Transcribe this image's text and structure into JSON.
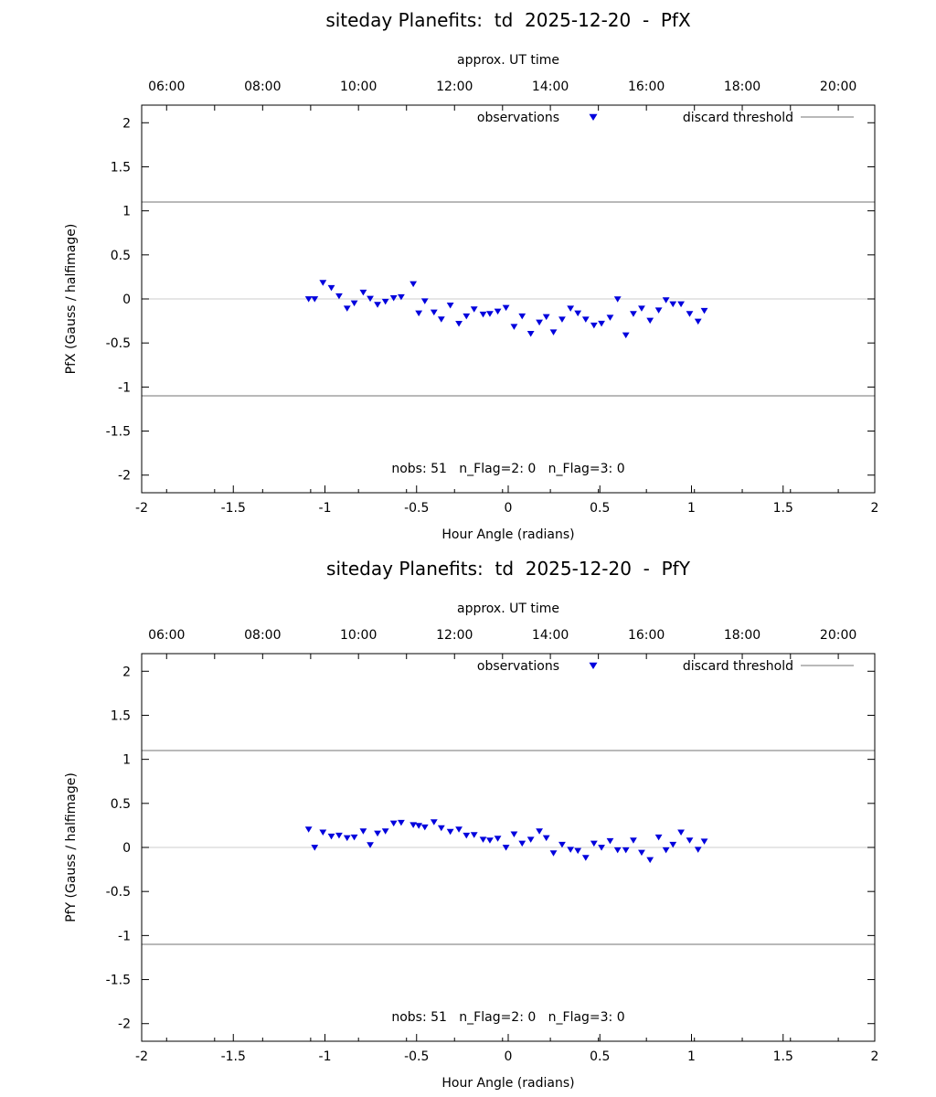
{
  "chart_data": [
    {
      "type": "scatter",
      "title": "siteday Planefits:  td  2025-12-20  -  PfX",
      "x2label": "approx. UT time",
      "xlabel": "Hour Angle (radians)",
      "ylabel": "PfX (Gauss / halfimage)",
      "xlim": [
        -2,
        2
      ],
      "ylim": [
        -2.2,
        2.2
      ],
      "x_ticks": [
        -2,
        -1.5,
        -1,
        -0.5,
        0,
        0.5,
        1,
        1.5,
        2
      ],
      "y_ticks": [
        2,
        1.5,
        1,
        0.5,
        0,
        -0.5,
        -1,
        -1.5,
        -2
      ],
      "x2_ticks": {
        "labels": [
          "06:00",
          "08:00",
          "10:00",
          "12:00",
          "14:00",
          "16:00",
          "18:00",
          "20:00"
        ],
        "positions_rad": [
          -1.864,
          -1.34,
          -0.817,
          -0.293,
          0.23,
          0.754,
          1.277,
          1.801
        ],
        "minor_positions_rad": [
          -1.602,
          -1.078,
          -0.555,
          -0.031,
          0.492,
          1.016,
          1.54
        ]
      },
      "zero_line": {
        "value": 0,
        "color": "#cdcdcd"
      },
      "thresholds": {
        "label": "discard threshold",
        "values": [
          1.1,
          -1.1
        ],
        "color": "#b9b9b9"
      },
      "grid": false,
      "legend_position": "top-inside",
      "footnote": "nobs: 51   n_Flag=2: 0   n_Flag=3: 0",
      "stats": {
        "nobs": 51,
        "n_flag_2": 0,
        "n_flag_3": 0
      },
      "series": [
        {
          "name": "observations",
          "marker": "triangle-down",
          "color": "#0000dd",
          "points": [
            [
              -1.089,
              0.0
            ],
            [
              -1.056,
              0.0
            ],
            [
              -1.011,
              0.185
            ],
            [
              -0.965,
              0.127
            ],
            [
              -0.923,
              0.033
            ],
            [
              -0.879,
              -0.106
            ],
            [
              -0.84,
              -0.047
            ],
            [
              -0.791,
              0.075
            ],
            [
              -0.753,
              0.005
            ],
            [
              -0.713,
              -0.064
            ],
            [
              -0.67,
              -0.029
            ],
            [
              -0.625,
              0.012
            ],
            [
              -0.584,
              0.023
            ],
            [
              -0.518,
              0.171
            ],
            [
              -0.488,
              -0.161
            ],
            [
              -0.455,
              -0.023
            ],
            [
              -0.405,
              -0.151
            ],
            [
              -0.365,
              -0.23
            ],
            [
              -0.316,
              -0.071
            ],
            [
              -0.269,
              -0.279
            ],
            [
              -0.228,
              -0.195
            ],
            [
              -0.186,
              -0.116
            ],
            [
              -0.137,
              -0.174
            ],
            [
              -0.1,
              -0.168
            ],
            [
              -0.057,
              -0.14
            ],
            [
              -0.012,
              -0.099
            ],
            [
              0.032,
              -0.314
            ],
            [
              0.076,
              -0.195
            ],
            [
              0.123,
              -0.393
            ],
            [
              0.17,
              -0.265
            ],
            [
              0.208,
              -0.203
            ],
            [
              0.247,
              -0.376
            ],
            [
              0.294,
              -0.231
            ],
            [
              0.34,
              -0.106
            ],
            [
              0.38,
              -0.161
            ],
            [
              0.423,
              -0.231
            ],
            [
              0.468,
              -0.299
            ],
            [
              0.509,
              -0.278
            ],
            [
              0.556,
              -0.21
            ],
            [
              0.597,
              -0.002
            ],
            [
              0.642,
              -0.41
            ],
            [
              0.683,
              -0.168
            ],
            [
              0.728,
              -0.106
            ],
            [
              0.774,
              -0.244
            ],
            [
              0.821,
              -0.127
            ],
            [
              0.861,
              -0.012
            ],
            [
              0.899,
              -0.057
            ],
            [
              0.943,
              -0.057
            ],
            [
              0.99,
              -0.168
            ],
            [
              1.036,
              -0.254
            ],
            [
              1.07,
              -0.133
            ]
          ]
        }
      ]
    },
    {
      "type": "scatter",
      "title": "siteday Planefits:  td  2025-12-20  -  PfY",
      "x2label": "approx. UT time",
      "xlabel": "Hour Angle (radians)",
      "ylabel": "PfY (Gauss / halfimage)",
      "xlim": [
        -2,
        2
      ],
      "ylim": [
        -2.2,
        2.2
      ],
      "x_ticks": [
        -2,
        -1.5,
        -1,
        -0.5,
        0,
        0.5,
        1,
        1.5,
        2
      ],
      "y_ticks": [
        2,
        1.5,
        1,
        0.5,
        0,
        -0.5,
        -1,
        -1.5,
        -2
      ],
      "x2_ticks": {
        "labels": [
          "06:00",
          "08:00",
          "10:00",
          "12:00",
          "14:00",
          "16:00",
          "18:00",
          "20:00"
        ],
        "positions_rad": [
          -1.864,
          -1.34,
          -0.817,
          -0.293,
          0.23,
          0.754,
          1.277,
          1.801
        ],
        "minor_positions_rad": [
          -1.602,
          -1.078,
          -0.555,
          -0.031,
          0.492,
          1.016,
          1.54
        ]
      },
      "zero_line": {
        "value": 0,
        "color": "#cdcdcd"
      },
      "thresholds": {
        "label": "discard threshold",
        "values": [
          1.1,
          -1.1
        ],
        "color": "#b9b9b9"
      },
      "grid": false,
      "legend_position": "top-inside",
      "footnote": "nobs: 51   n_Flag=2: 0   n_Flag=3: 0",
      "stats": {
        "nobs": 51,
        "n_flag_2": 0,
        "n_flag_3": 0
      },
      "series": [
        {
          "name": "observations",
          "marker": "triangle-down",
          "color": "#0000dd",
          "points": [
            [
              -1.089,
              0.206
            ],
            [
              -1.056,
              0.0
            ],
            [
              -1.011,
              0.172
            ],
            [
              -0.965,
              0.127
            ],
            [
              -0.923,
              0.137
            ],
            [
              -0.879,
              0.109
            ],
            [
              -0.84,
              0.116
            ],
            [
              -0.791,
              0.185
            ],
            [
              -0.753,
              0.03
            ],
            [
              -0.713,
              0.161
            ],
            [
              -0.67,
              0.185
            ],
            [
              -0.625,
              0.275
            ],
            [
              -0.584,
              0.283
            ],
            [
              -0.518,
              0.256
            ],
            [
              -0.488,
              0.248
            ],
            [
              -0.455,
              0.231
            ],
            [
              -0.405,
              0.289
            ],
            [
              -0.365,
              0.221
            ],
            [
              -0.316,
              0.18
            ],
            [
              -0.269,
              0.206
            ],
            [
              -0.228,
              0.137
            ],
            [
              -0.186,
              0.144
            ],
            [
              -0.137,
              0.091
            ],
            [
              -0.1,
              0.081
            ],
            [
              -0.057,
              0.102
            ],
            [
              -0.012,
              0.0
            ],
            [
              0.032,
              0.152
            ],
            [
              0.076,
              0.047
            ],
            [
              0.123,
              0.091
            ],
            [
              0.17,
              0.185
            ],
            [
              0.208,
              0.109
            ],
            [
              0.247,
              -0.064
            ],
            [
              0.294,
              0.033
            ],
            [
              0.34,
              -0.023
            ],
            [
              0.38,
              -0.036
            ],
            [
              0.423,
              -0.116
            ],
            [
              0.468,
              0.047
            ],
            [
              0.509,
              0.0
            ],
            [
              0.556,
              0.075
            ],
            [
              0.597,
              -0.029
            ],
            [
              0.642,
              -0.029
            ],
            [
              0.683,
              0.081
            ],
            [
              0.728,
              -0.057
            ],
            [
              0.774,
              -0.14
            ],
            [
              0.821,
              0.116
            ],
            [
              0.861,
              -0.029
            ],
            [
              0.899,
              0.033
            ],
            [
              0.943,
              0.172
            ],
            [
              0.99,
              0.081
            ],
            [
              1.036,
              -0.023
            ],
            [
              1.07,
              0.07
            ]
          ]
        }
      ]
    }
  ]
}
